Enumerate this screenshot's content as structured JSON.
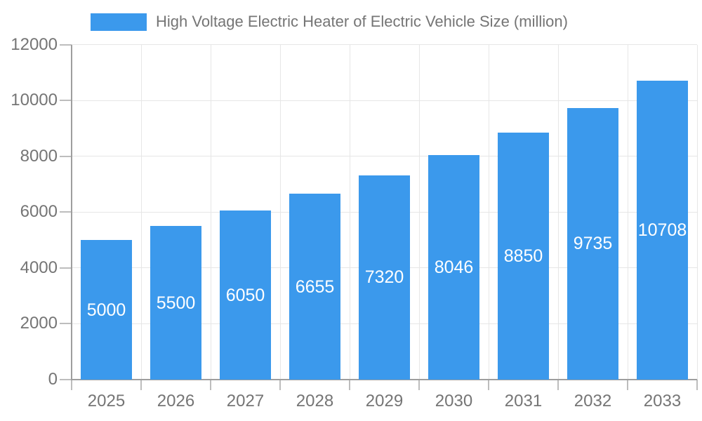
{
  "chart_data": {
    "type": "bar",
    "title": "",
    "legend": "High Voltage Electric Heater of Electric Vehicle Size (million)",
    "legend_position": "top",
    "categories": [
      "2025",
      "2026",
      "2027",
      "2028",
      "2029",
      "2030",
      "2031",
      "2032",
      "2033"
    ],
    "values": [
      5000,
      5500,
      6050,
      6655,
      7320,
      8046,
      8850,
      9735,
      10708
    ],
    "xlabel": "",
    "ylabel": "",
    "ylim": [
      0,
      12000
    ],
    "yticks": [
      0,
      2000,
      4000,
      6000,
      8000,
      10000,
      12000
    ],
    "grid": true,
    "bar_labels_inside": true
  },
  "colors": {
    "bar": "#3B99EC",
    "bar_label": "#FFFFFF",
    "grid": "#E6E6E6",
    "axis": "#9E9E9E",
    "tick": "#BDBDBD",
    "text": "#757575",
    "background": "#FFFFFF"
  }
}
